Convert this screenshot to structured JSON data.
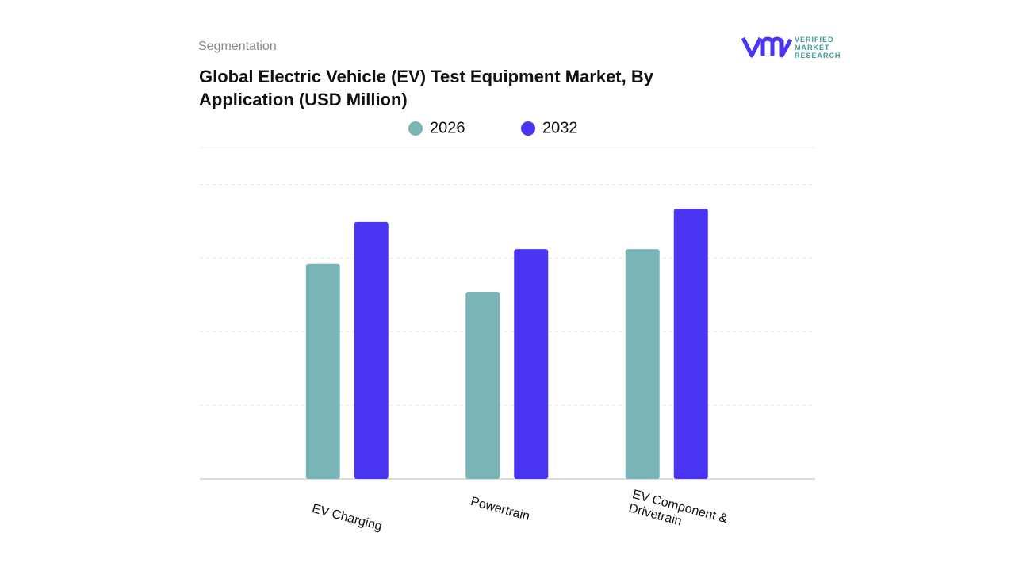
{
  "brand": {
    "lines": [
      "VERIFIED",
      "MARKET",
      "RESEARCH"
    ]
  },
  "chart_data": {
    "type": "bar",
    "subtitle": "Segmentation",
    "title": "Global Electric Vehicle (EV) Test Equipment Market, By Application (USD Million)",
    "categories": [
      "EV Charging",
      "Powertrain",
      "EV Component & Drivetrain"
    ],
    "series": [
      {
        "name": "2026",
        "color": "#7ab5b8",
        "values": [
          2.92,
          2.54,
          3.12
        ]
      },
      {
        "name": "2032",
        "color": "#4a35f5",
        "values": [
          3.49,
          3.12,
          3.67
        ]
      }
    ],
    "ylim": [
      0,
      4.5
    ],
    "yticks": [
      0,
      1,
      2,
      3,
      4
    ],
    "grid": true,
    "legend": "top"
  }
}
